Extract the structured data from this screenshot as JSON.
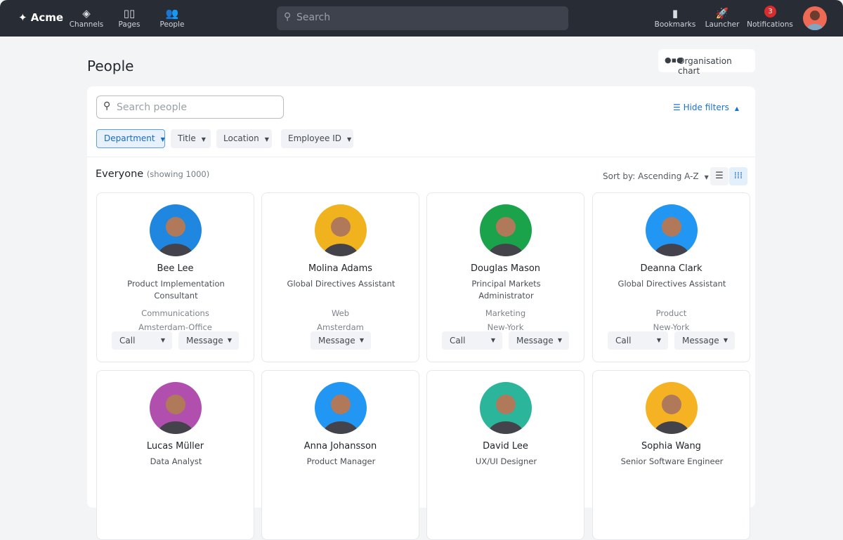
{
  "nav": {
    "brand": "Acme",
    "items": [
      {
        "label": "Channels",
        "icon": "layers-icon"
      },
      {
        "label": "Pages",
        "icon": "book-icon"
      },
      {
        "label": "People",
        "icon": "people-icon"
      }
    ],
    "search_placeholder": "Search",
    "right": [
      {
        "label": "Bookmarks",
        "icon": "bookmark-icon"
      },
      {
        "label": "Launcher",
        "icon": "rocket-icon"
      },
      {
        "label": "Notifications",
        "icon": "bell-icon",
        "badge": "3"
      }
    ]
  },
  "page": {
    "title": "People",
    "org_chart": "Organisation chart"
  },
  "filters": {
    "search_placeholder": "Search people",
    "hide": "Hide filters",
    "chips": [
      "Department",
      "Title",
      "Location",
      "Employee ID"
    ]
  },
  "list": {
    "heading": "Everyone",
    "count": "(showing 1000)",
    "sort": "Sort by: Ascending A-Z",
    "view": "grid"
  },
  "actions": {
    "call": "Call",
    "message": "Message"
  },
  "people": [
    {
      "name": "Bee Lee",
      "title": "Product Implementation Consultant",
      "dept": "Communications",
      "loc": "Amsterdam-Office",
      "call": true,
      "color": "#1f87e0"
    },
    {
      "name": "Molina Adams",
      "title": "Global Directives Assistant",
      "dept": "Web",
      "loc": "Amsterdam",
      "call": false,
      "color": "#f0b31e"
    },
    {
      "name": "Douglas Mason",
      "title": "Principal Markets Administrator",
      "dept": "Marketing",
      "loc": "New-York",
      "call": true,
      "color": "#1aa34a"
    },
    {
      "name": "Deanna Clark",
      "title": "Global Directives Assistant",
      "dept": "Product",
      "loc": "New-York",
      "call": true,
      "color": "#2196f3"
    },
    {
      "name": "Lucas Müller",
      "title": "Data Analyst",
      "color": "#b04fae"
    },
    {
      "name": "Anna Johansson",
      "title": "Product Manager",
      "color": "#2196f3"
    },
    {
      "name": "David Lee",
      "title": "UX/UI Designer",
      "color": "#2bb59a"
    },
    {
      "name": "Sophia Wang",
      "title": "Senior Software Engineer",
      "color": "#f5b324"
    }
  ]
}
